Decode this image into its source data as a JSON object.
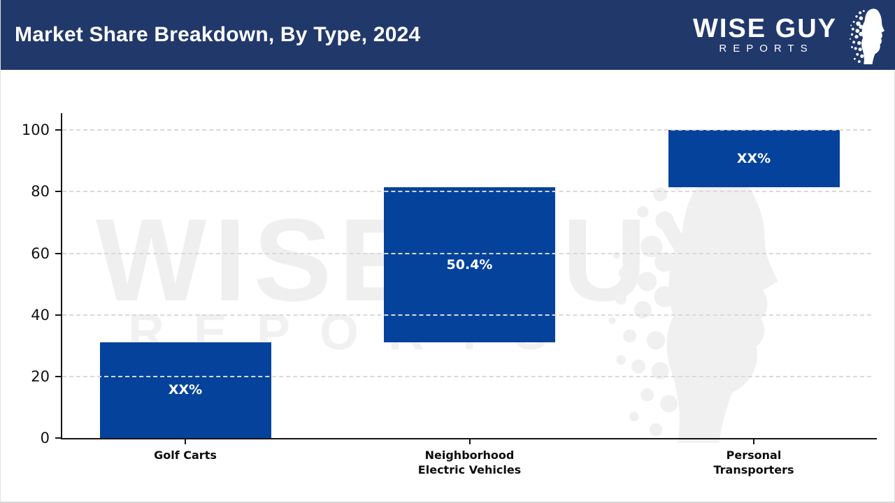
{
  "header": {
    "title": "Market Share Breakdown, By Type, 2024",
    "logo_line1": "WISE GUY",
    "logo_line2": "REPORTS"
  },
  "watermark": {
    "line1": "WISE GUY",
    "line2": "REPORTS"
  },
  "colors": {
    "header_bg": "#21386b",
    "bar": "#04429c",
    "grid": "#d9d9d9",
    "axis": "#141414",
    "bar_label": "#ffffff",
    "watermark": "#f0f0f0",
    "logo": "#ffffff"
  },
  "chart_data": {
    "type": "bar",
    "variant": "waterfall",
    "title": "Market Share Breakdown, By Type, 2024",
    "categories": [
      "Golf Carts",
      "Neighborhood\nElectric Vehicles",
      "Personal\nTransporters"
    ],
    "bars": [
      {
        "category": "Golf Carts",
        "start": 0,
        "end": 31.1,
        "label": "XX%"
      },
      {
        "category": "Neighborhood\nElectric Vehicles",
        "start": 31.1,
        "end": 81.5,
        "label": "50.4%"
      },
      {
        "category": "Personal\nTransporters",
        "start": 81.5,
        "end": 100,
        "label": "XX%"
      }
    ],
    "yticks": [
      0,
      20,
      40,
      60,
      80,
      100
    ],
    "ylim": [
      0,
      105.5
    ],
    "xlabel": "",
    "ylabel": "",
    "grid": "horizontal-dashed-over-bars",
    "legend": "none"
  }
}
